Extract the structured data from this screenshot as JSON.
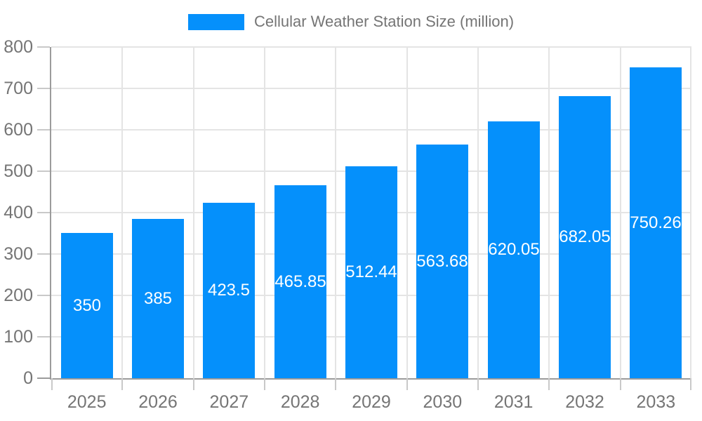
{
  "chart_data": {
    "type": "bar",
    "title": "Cellular Weather Station Size (million)",
    "categories": [
      "2025",
      "2026",
      "2027",
      "2028",
      "2029",
      "2030",
      "2031",
      "2032",
      "2033"
    ],
    "values": [
      350,
      385,
      423.5,
      465.85,
      512.44,
      563.68,
      620.05,
      682.05,
      750.26
    ],
    "value_labels": [
      "350",
      "385",
      "423.5",
      "465.85",
      "512.44",
      "563.68",
      "620.05",
      "682.05",
      "750.26"
    ],
    "xlabel": "",
    "ylabel": "",
    "ylim": [
      0,
      800
    ],
    "ytick_step": 100,
    "ytick_labels": [
      "0",
      "100",
      "200",
      "300",
      "400",
      "500",
      "600",
      "700",
      "800"
    ],
    "grid": "both",
    "legend_position": "top-center",
    "value_label_position": "middle-of-bar",
    "colors": {
      "bar": "#0590FB",
      "bar_value_text": "#FFFFFF",
      "axis_text": "#757575",
      "legend_text": "#757575",
      "gridline": "#E4E4E4",
      "axis_line": "#9B9B9B",
      "tick": "#C9C9C9",
      "background": "#FFFFFF"
    }
  }
}
